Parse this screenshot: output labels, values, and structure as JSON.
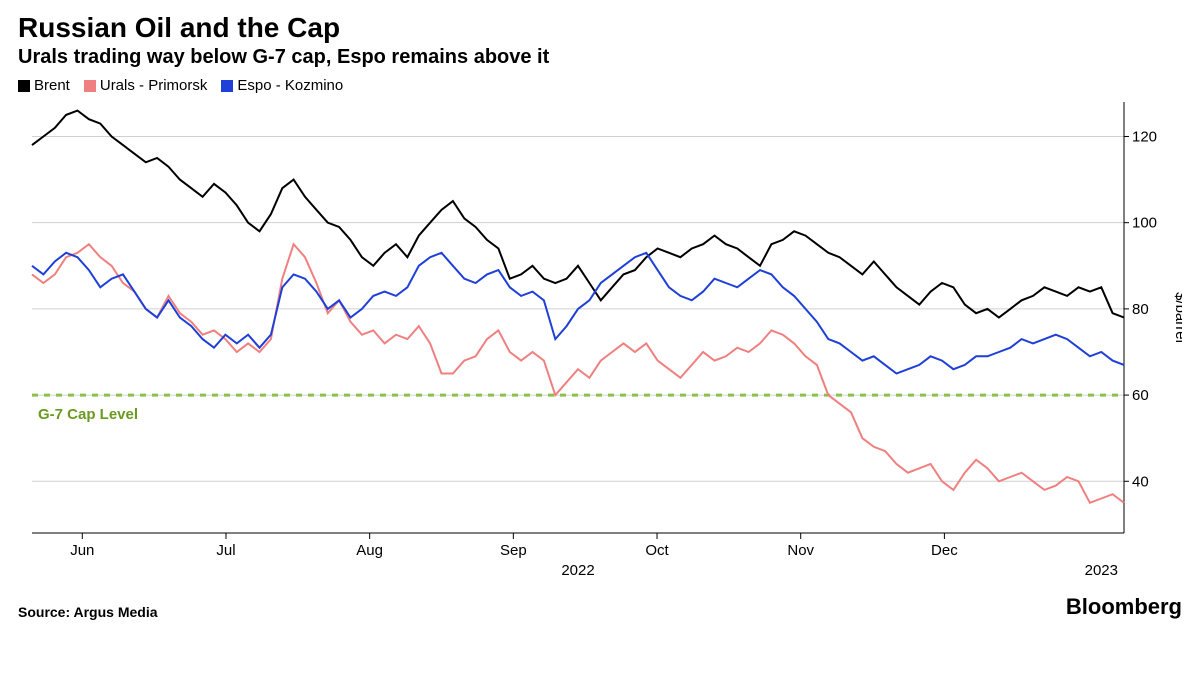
{
  "title": "Russian Oil and the Cap",
  "subtitle": "Urals trading way below G-7 cap, Espo remains above it",
  "source": "Source: Argus Media",
  "brand": "Bloomberg",
  "chart": {
    "type": "line",
    "ylabel": "$/barrel",
    "ylim": [
      28,
      128
    ],
    "yticks": [
      40,
      60,
      80,
      100,
      120
    ],
    "xticks": [
      "Jun",
      "Jul",
      "Aug",
      "Sep",
      "Oct",
      "Nov",
      "Dec"
    ],
    "x_year_main": "2022",
    "x_year_end": "2023",
    "background": "#ffffff",
    "grid_color": "#d0d0d0",
    "axis_color": "#000000",
    "cap_level": 60,
    "cap_label": "G-7 Cap Level",
    "cap_color": "#8bc34a",
    "line_width": 2,
    "dash_pattern": "6,6",
    "legend": [
      {
        "label": "Brent",
        "color": "#000000"
      },
      {
        "label": "Urals - Primorsk",
        "color": "#f08080"
      },
      {
        "label": "Espo - Kozmino",
        "color": "#1e3fd8"
      }
    ],
    "series": [
      {
        "name": "Brent",
        "color": "#000000",
        "data": [
          118,
          120,
          122,
          125,
          126,
          124,
          123,
          120,
          118,
          116,
          114,
          115,
          113,
          110,
          108,
          106,
          109,
          107,
          104,
          100,
          98,
          102,
          108,
          110,
          106,
          103,
          100,
          99,
          96,
          92,
          90,
          93,
          95,
          92,
          97,
          100,
          103,
          105,
          101,
          99,
          96,
          94,
          87,
          88,
          90,
          87,
          86,
          87,
          90,
          86,
          82,
          85,
          88,
          89,
          92,
          94,
          93,
          92,
          94,
          95,
          97,
          95,
          94,
          92,
          90,
          95,
          96,
          98,
          97,
          95,
          93,
          92,
          90,
          88,
          91,
          88,
          85,
          83,
          81,
          84,
          86,
          85,
          81,
          79,
          80,
          78,
          80,
          82,
          83,
          85,
          84,
          83,
          85,
          84,
          85,
          79,
          78
        ]
      },
      {
        "name": "Urals",
        "color": "#f08080",
        "data": [
          88,
          86,
          88,
          92,
          93,
          95,
          92,
          90,
          86,
          84,
          80,
          78,
          83,
          79,
          77,
          74,
          75,
          73,
          70,
          72,
          70,
          73,
          87,
          95,
          92,
          86,
          79,
          82,
          77,
          74,
          75,
          72,
          74,
          73,
          76,
          72,
          65,
          65,
          68,
          69,
          73,
          75,
          70,
          68,
          70,
          68,
          60,
          63,
          66,
          64,
          68,
          70,
          72,
          70,
          72,
          68,
          66,
          64,
          67,
          70,
          68,
          69,
          71,
          70,
          72,
          75,
          74,
          72,
          69,
          67,
          60,
          58,
          56,
          50,
          48,
          47,
          44,
          42,
          43,
          44,
          40,
          38,
          42,
          45,
          43,
          40,
          41,
          42,
          40,
          38,
          39,
          41,
          40,
          35,
          36,
          37,
          35
        ]
      },
      {
        "name": "Espo",
        "color": "#1e3fd8",
        "data": [
          90,
          88,
          91,
          93,
          92,
          89,
          85,
          87,
          88,
          84,
          80,
          78,
          82,
          78,
          76,
          73,
          71,
          74,
          72,
          74,
          71,
          74,
          85,
          88,
          87,
          84,
          80,
          82,
          78,
          80,
          83,
          84,
          83,
          85,
          90,
          92,
          93,
          90,
          87,
          86,
          88,
          89,
          85,
          83,
          84,
          82,
          73,
          76,
          80,
          82,
          86,
          88,
          90,
          92,
          93,
          89,
          85,
          83,
          82,
          84,
          87,
          86,
          85,
          87,
          89,
          88,
          85,
          83,
          80,
          77,
          73,
          72,
          70,
          68,
          69,
          67,
          65,
          66,
          67,
          69,
          68,
          66,
          67,
          69,
          69,
          70,
          71,
          73,
          72,
          73,
          74,
          73,
          71,
          69,
          70,
          68,
          67
        ]
      }
    ]
  }
}
